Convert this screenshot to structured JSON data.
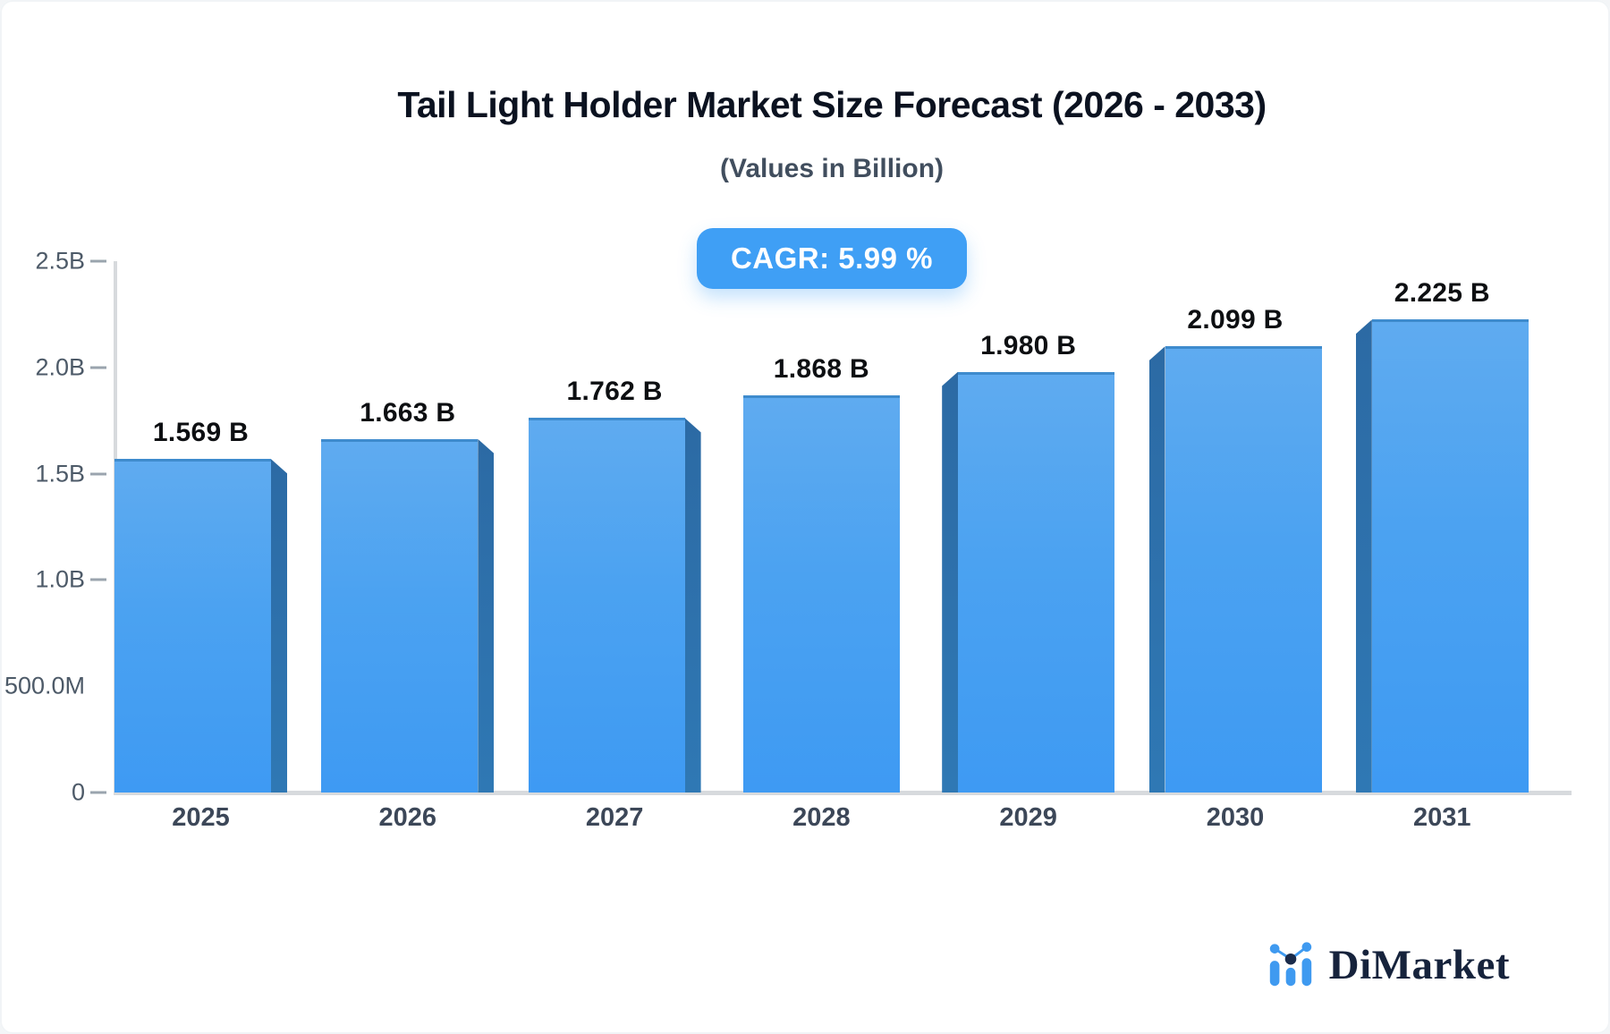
{
  "header": {
    "title": "Tail Light Holder Market Size Forecast (2026 - 2033)",
    "subtitle": "(Values in Billion)",
    "cagr_badge": "CAGR: 5.99 %"
  },
  "chart_data": {
    "type": "bar",
    "title": "Tail Light Holder Market Size Forecast (2026 - 2033)",
    "subtitle": "(Values in Billion)",
    "cagr": "5.99 %",
    "categories": [
      "2025",
      "2026",
      "2027",
      "2028",
      "2029",
      "2030",
      "2031"
    ],
    "values": [
      1.569,
      1.663,
      1.762,
      1.868,
      1.98,
      2.099,
      2.225
    ],
    "value_labels": [
      "1.569 B",
      "1.663 B",
      "1.762 B",
      "1.868 B",
      "1.980 B",
      "2.099 B",
      "2.225 B"
    ],
    "unit": "Billion USD",
    "ylim": [
      0,
      2.5
    ],
    "y_ticks": [
      {
        "label": "2.5B",
        "value": 2.5,
        "dash": true
      },
      {
        "label": "2.0B",
        "value": 2.0,
        "dash": true
      },
      {
        "label": "1.5B",
        "value": 1.5,
        "dash": true
      },
      {
        "label": "1.0B",
        "value": 1.0,
        "dash": true
      },
      {
        "label": "500.0M",
        "value": 0.5,
        "dash": false
      },
      {
        "label": "0",
        "value": 0.0,
        "dash": true
      }
    ],
    "bar_3d_sides": [
      "right",
      "right",
      "right",
      "none",
      "left",
      "left",
      "left"
    ],
    "grid": false,
    "legend": false,
    "colors": {
      "bar_top": "#5fabf0",
      "bar_bottom": "#3e9af3",
      "bar_side": "#2e6fab",
      "bar_stroke": "#3e8bcd",
      "axis": "#d7dadd",
      "tick_dash": "#9aa4ae",
      "badge_bg": "#3f9ff5",
      "badge_text": "#ffffff",
      "value_label": "#0d0f12",
      "category_label": "#3c4758",
      "ytick_label": "#4d5a68"
    }
  },
  "logo": {
    "text": "DiMarket",
    "icon": "bar-chart-logo-icon"
  }
}
